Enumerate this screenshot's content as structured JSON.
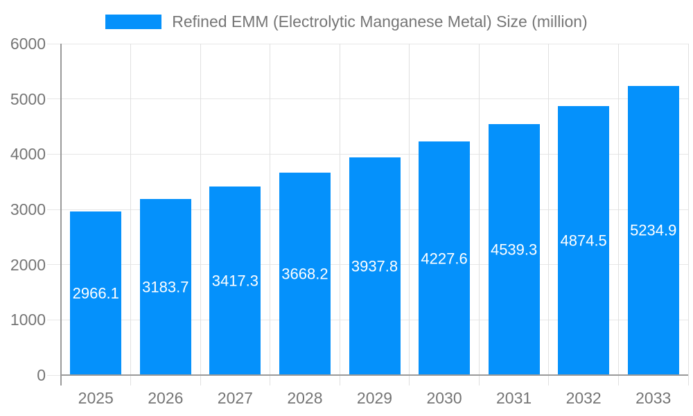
{
  "chart_data": {
    "type": "bar",
    "title": "Refined EMM (Electrolytic Manganese Metal) Size (million)",
    "legend_entries": [
      "Refined EMM (Electrolytic Manganese Metal) Size (million)"
    ],
    "legend_position": "top-center",
    "categories": [
      "2025",
      "2026",
      "2027",
      "2028",
      "2029",
      "2030",
      "2031",
      "2032",
      "2033"
    ],
    "values": [
      2966.1,
      3183.7,
      3417.3,
      3668.2,
      3937.8,
      4227.6,
      4539.3,
      4874.5,
      5234.9
    ],
    "value_labels": [
      "2966.1",
      "3183.7",
      "3417.3",
      "3668.2",
      "3937.8",
      "4227.6",
      "4539.3",
      "4874.5",
      "5234.9"
    ],
    "xlabel": "",
    "ylabel": "",
    "ylim": [
      0,
      6000
    ],
    "yticks": [
      0,
      1000,
      2000,
      3000,
      4000,
      5000,
      6000
    ],
    "grid": true,
    "colors": {
      "bar": "#0591fb",
      "value_label_text": "#ffffff",
      "axis_text": "#757575",
      "axis_line": "#999999",
      "grid_h": "#e6e6e6",
      "grid_v": "#e0e0e0",
      "background": "#ffffff"
    }
  }
}
